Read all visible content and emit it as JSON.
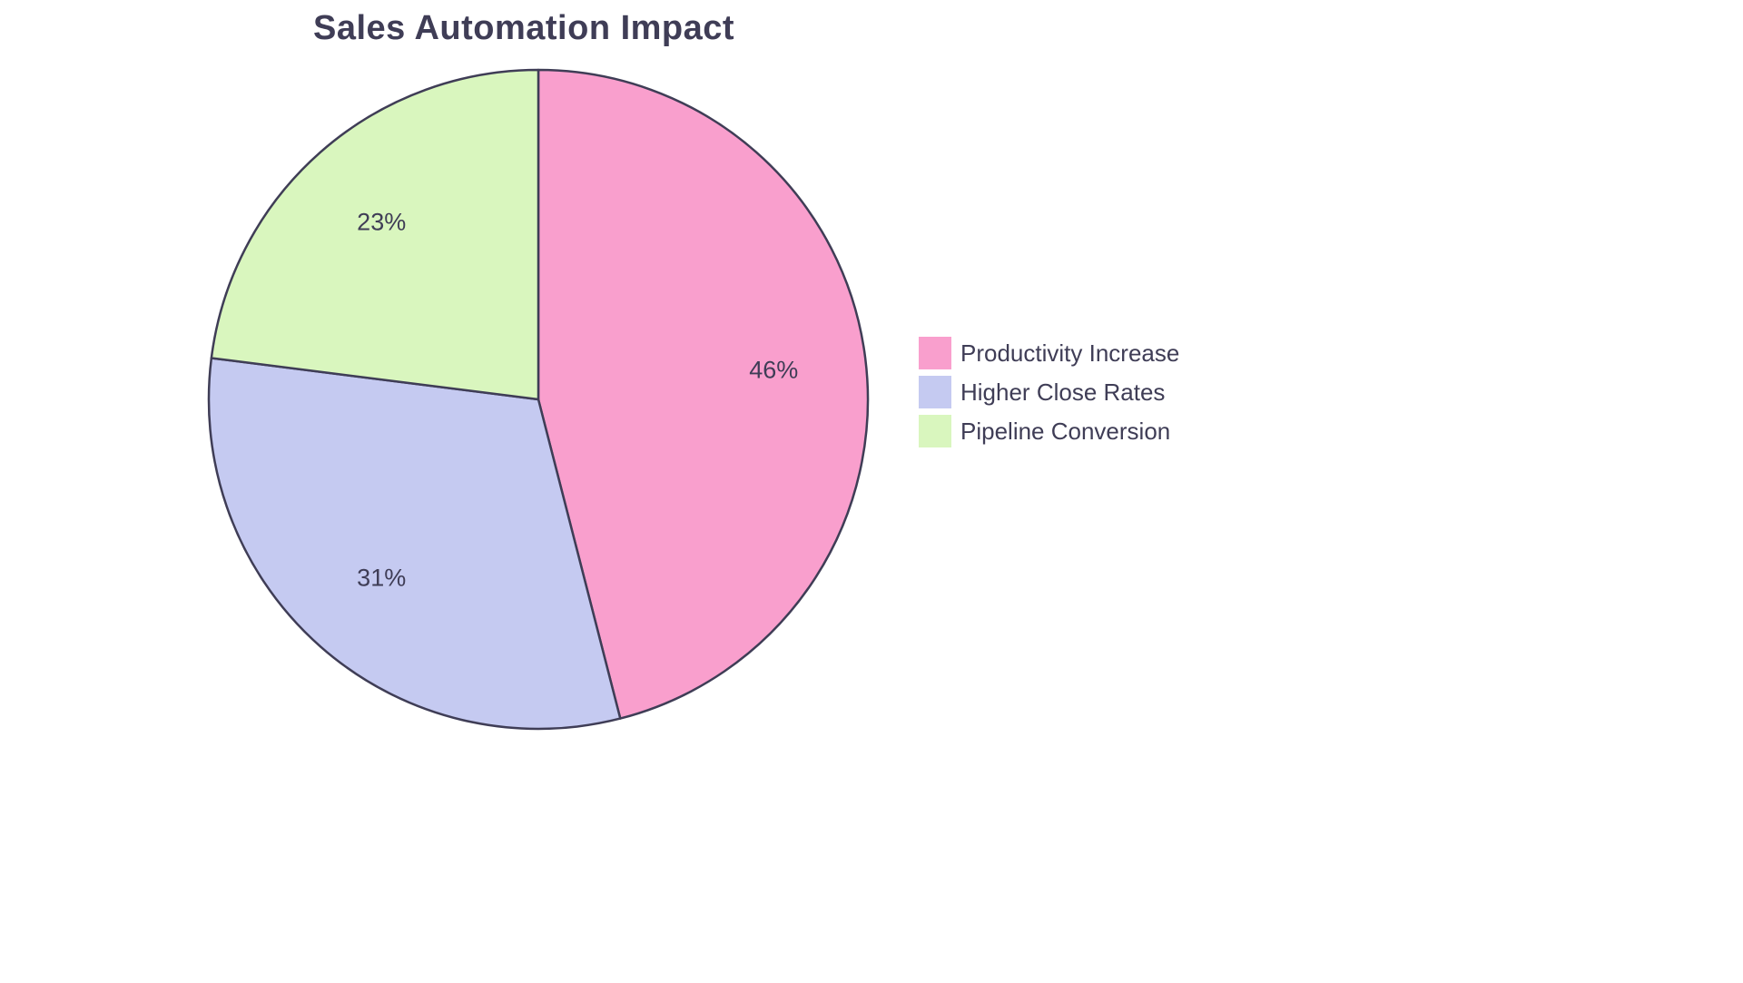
{
  "chart_data": {
    "type": "pie",
    "title": "Sales Automation Impact",
    "slices": [
      {
        "label": "Productivity Increase",
        "value": 46,
        "percent_label": "46%",
        "color": "#F99FCD"
      },
      {
        "label": "Higher Close Rates",
        "value": 31,
        "percent_label": "31%",
        "color": "#C5CAF1"
      },
      {
        "label": "Pipeline Conversion",
        "value": 23,
        "percent_label": "23%",
        "color": "#D9F6BE"
      }
    ],
    "start_angle_deg": 0,
    "direction": "clockwise",
    "legend_position": "right",
    "stroke_color": "#3F3D56",
    "label_color": "#3F3D56",
    "title_color": "#3F3D56",
    "background_color": "#FFFFFF"
  }
}
